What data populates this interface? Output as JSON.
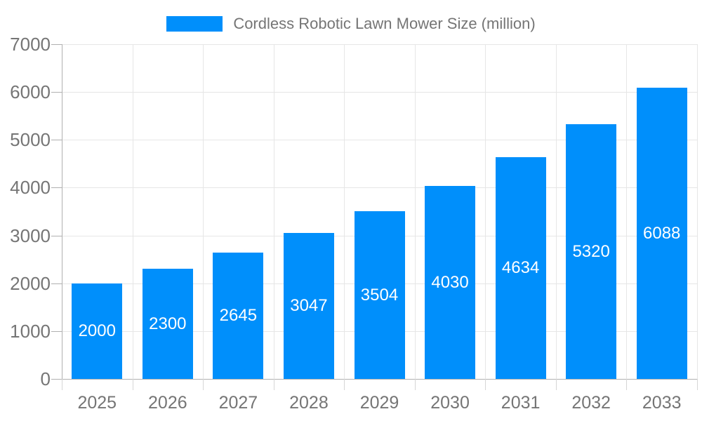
{
  "chart_data": {
    "type": "bar",
    "title": "Cordless Robotic Lawn Mower Size (million)",
    "legend": {
      "position": "top-center",
      "label": "Cordless Robotic Lawn Mower Size (million)"
    },
    "categories": [
      "2025",
      "2026",
      "2027",
      "2028",
      "2029",
      "2030",
      "2031",
      "2032",
      "2033"
    ],
    "series": [
      {
        "name": "Cordless Robotic Lawn Mower Size (million)",
        "values": [
          2000,
          2300,
          2645,
          3047,
          3504,
          4030,
          4634,
          5320,
          6088
        ]
      }
    ],
    "bar_value_labels": [
      "2000",
      "2300",
      "2645",
      "3047",
      "3504",
      "4030",
      "4634",
      "5320",
      "6088"
    ],
    "xlabel": "",
    "ylabel": "",
    "ylim": [
      0,
      7000
    ],
    "y_tick_step": 1000,
    "y_tick_labels": [
      "0",
      "1000",
      "2000",
      "3000",
      "4000",
      "5000",
      "6000",
      "7000"
    ],
    "grid": "horizontal-and-vertical",
    "colors": {
      "bar": "#008FFB",
      "bar_label_text": "#ffffff",
      "axis_text": "#757575",
      "legend_text": "#757575",
      "gridline": "#e6e6e6",
      "tick": "#d6d6d6",
      "axis_line": "#b0b0b0",
      "background": "#ffffff"
    }
  }
}
